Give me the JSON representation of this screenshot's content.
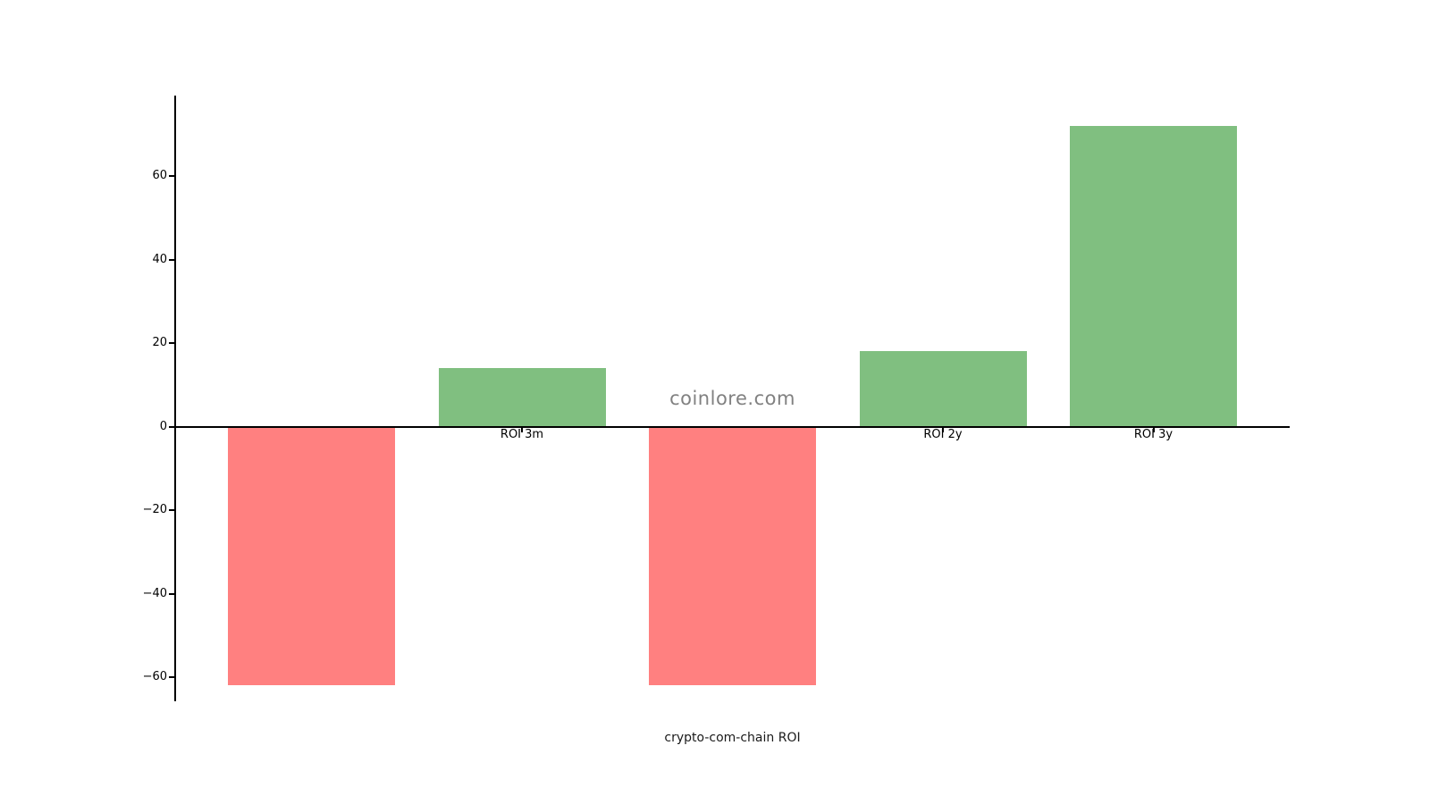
{
  "chart_data": {
    "type": "bar",
    "title": "crypto-com-chain ROI",
    "title_position": "bottom",
    "watermark": "coinlore.com",
    "categories": [
      "",
      "ROI 3m",
      "",
      "ROI 2y",
      "ROI 3y"
    ],
    "values": [
      -62,
      14,
      -62,
      18,
      72
    ],
    "bar_colors": [
      "#ff8080",
      "#80bf80",
      "#ff8080",
      "#80bf80",
      "#80bf80"
    ],
    "positive_color": "#80bf80",
    "negative_color": "#ff8080",
    "yticks": [
      60,
      40,
      20,
      0,
      -20,
      -40,
      -60
    ],
    "ylim": [
      -65.8,
      79.3
    ],
    "xlabel": "",
    "ylabel": "",
    "legend": false,
    "grid": false,
    "axis_color": "#000000",
    "watermark_color": "#818181"
  }
}
